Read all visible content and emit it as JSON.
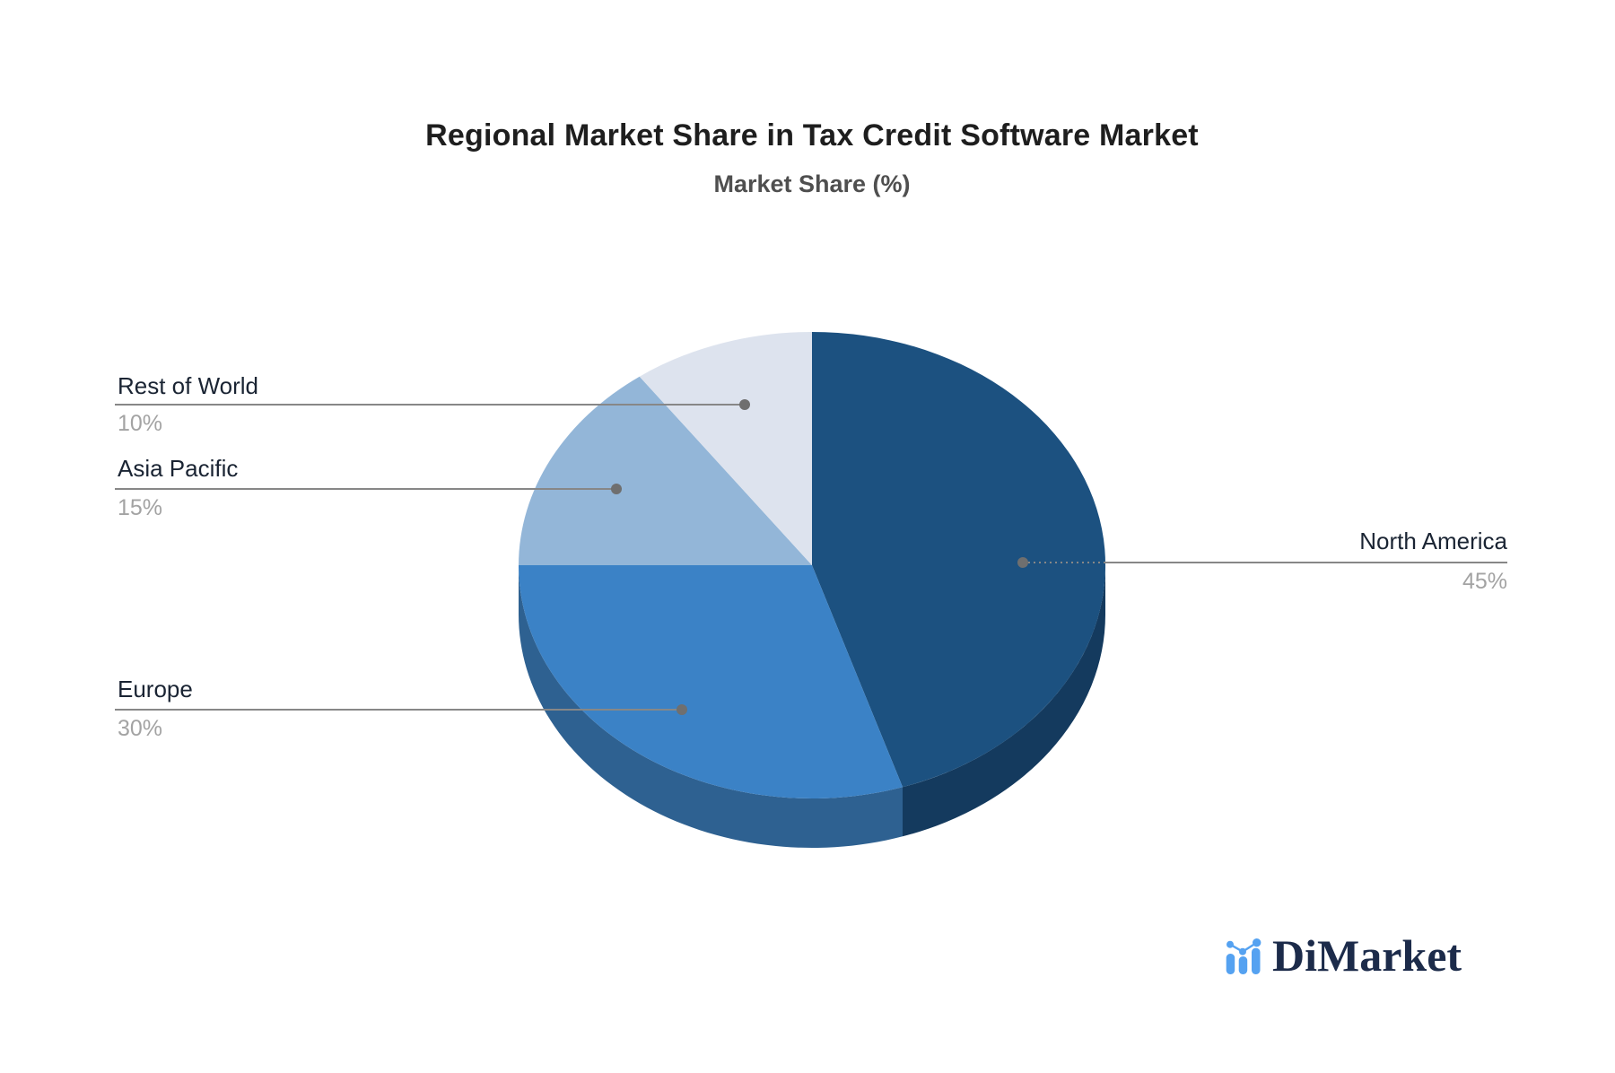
{
  "title": "Regional Market Share in Tax Credit Software Market",
  "subtitle": "Market Share (%)",
  "chart_data": {
    "type": "pie",
    "style": "3d",
    "start_angle_deg": 90,
    "direction": "clockwise",
    "unit": "%",
    "legend_position": "callout-labels",
    "categories": [
      "North America",
      "Europe",
      "Asia Pacific",
      "Rest of World"
    ],
    "values": [
      45,
      30,
      15,
      10
    ],
    "title": "Regional Market Share in Tax Credit Software Market",
    "subtitle": "Market Share (%)",
    "slices": [
      {
        "label": "North America",
        "value": 45,
        "display": "45%",
        "color": "#1c5180",
        "side_color": "#143a5e"
      },
      {
        "label": "Europe",
        "value": 30,
        "display": "30%",
        "color": "#3b82c6",
        "side_color": "#2e6191"
      },
      {
        "label": "Asia Pacific",
        "value": 15,
        "display": "15%",
        "color": "#93b6d8",
        "side_color": "#7499bb"
      },
      {
        "label": "Rest of World",
        "value": 10,
        "display": "10%",
        "color": "#dde3ee",
        "side_color": "#bcc5d4"
      }
    ]
  },
  "branding": {
    "name": "DiMarket",
    "icon": "bar-chart-trend-icon",
    "icon_color": "#55a2f1",
    "text_color": "#1c2b4a"
  },
  "colors": {
    "background": "#ffffff",
    "title": "#1e1e1e",
    "subtitle": "#4f4f4f",
    "callout_label": "#1a2433",
    "callout_value": "#a3a3a3",
    "leader_line": "#878787"
  }
}
